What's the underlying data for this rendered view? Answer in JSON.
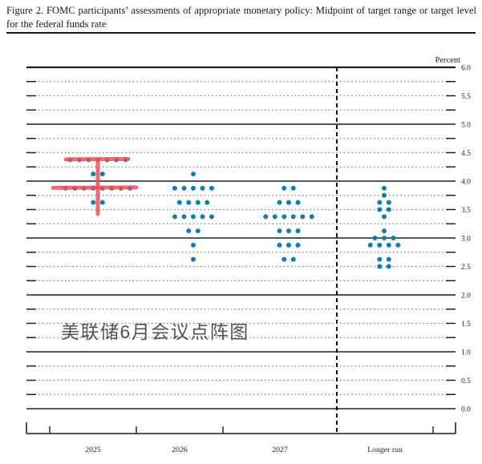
{
  "title": "Figure 2.  FOMC participants’ assessments of appropriate monetary policy:  Midpoint of target range or target level for the federal funds rate",
  "watermark": "美联储6月会议点阵图",
  "chart_data": {
    "type": "scatter",
    "title": "FOMC dot plot: midpoint of target range or target level for the federal funds rate",
    "ylabel": "Percent",
    "y_axis": {
      "min": 0.0,
      "max": 6.0,
      "grid_step": 0.25,
      "label_step": 0.5,
      "solid_lines_at": "integers",
      "labels_side": "right"
    },
    "percent_label": "Percent",
    "categories": [
      "2025",
      "2026",
      "2027",
      "Longer run"
    ],
    "separator_dashed_before": "Longer run",
    "columns": [
      {
        "label": "2025",
        "dots": [
          {
            "value": 4.375,
            "count": 7
          },
          {
            "value": 4.125,
            "count": 2
          },
          {
            "value": 3.875,
            "count": 8
          },
          {
            "value": 3.625,
            "count": 2
          }
        ]
      },
      {
        "label": "2026",
        "dots": [
          {
            "value": 4.125,
            "count": 1
          },
          {
            "value": 3.875,
            "count": 5
          },
          {
            "value": 3.625,
            "count": 4
          },
          {
            "value": 3.375,
            "count": 5
          },
          {
            "value": 3.125,
            "count": 2
          },
          {
            "value": 2.875,
            "count": 1
          },
          {
            "value": 2.625,
            "count": 1
          }
        ]
      },
      {
        "label": "2027",
        "dots": [
          {
            "value": 3.875,
            "count": 2
          },
          {
            "value": 3.625,
            "count": 3
          },
          {
            "value": 3.375,
            "count": 6
          },
          {
            "value": 3.125,
            "count": 3
          },
          {
            "value": 2.875,
            "count": 3
          },
          {
            "value": 2.625,
            "count": 2
          }
        ]
      },
      {
        "label": "Longer run",
        "dots": [
          {
            "value": 3.875,
            "count": 1
          },
          {
            "value": 3.75,
            "count": 1
          },
          {
            "value": 3.625,
            "count": 2
          },
          {
            "value": 3.5,
            "count": 2
          },
          {
            "value": 3.375,
            "count": 1
          },
          {
            "value": 3.125,
            "count": 1
          },
          {
            "value": 3.0,
            "count": 3
          },
          {
            "value": 2.875,
            "count": 4
          },
          {
            "value": 2.625,
            "count": 2
          },
          {
            "value": 2.5,
            "count": 2
          }
        ]
      }
    ],
    "annotation": {
      "column": "2025",
      "highlighted_values": [
        4.375,
        3.875
      ],
      "vertical_strike": true,
      "color": "#f24d58"
    },
    "colors": {
      "dot": "#0d7eb1",
      "grid_solid": "#1f1f1f",
      "grid_dotted": "#777777",
      "annotation": "#f24d58",
      "text": "#222222"
    }
  }
}
